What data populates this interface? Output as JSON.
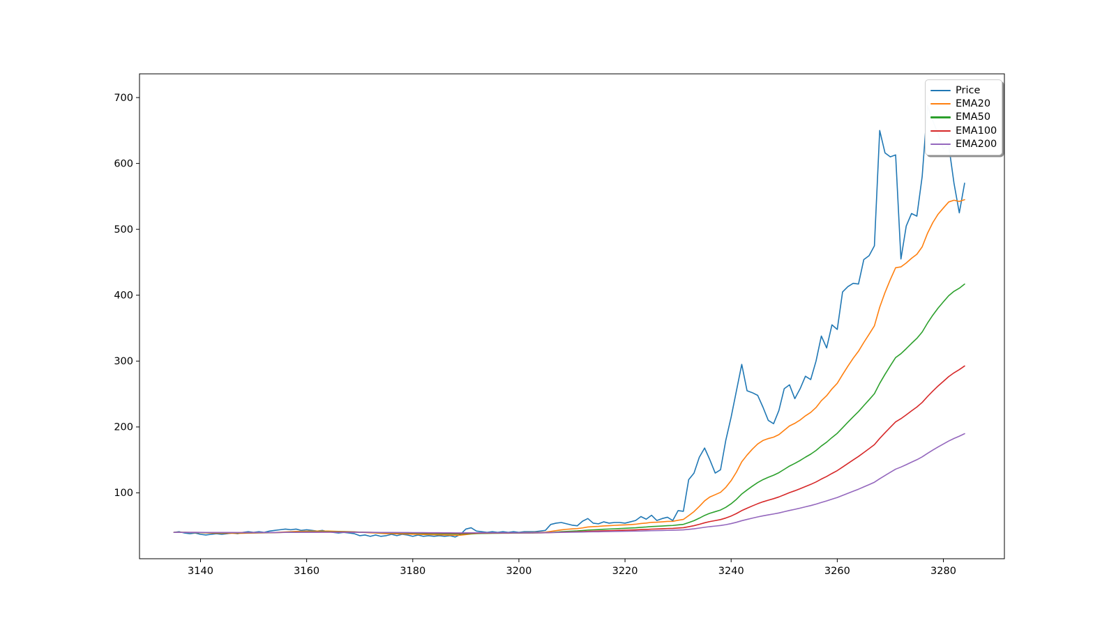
{
  "chart_data": {
    "type": "line",
    "title": "",
    "xlabel": "",
    "ylabel": "",
    "grid": false,
    "legend_position": "upper right",
    "xlim": [
      3128.5,
      3291.5
    ],
    "ylim": [
      0,
      736
    ],
    "x_ticks": [
      3140,
      3160,
      3180,
      3200,
      3220,
      3240,
      3260,
      3280
    ],
    "y_ticks": [
      100,
      200,
      300,
      400,
      500,
      600,
      700
    ],
    "x_start": 3135,
    "x_step": 1,
    "price": [
      40,
      41,
      39,
      38,
      39,
      37,
      36,
      37,
      38,
      37,
      38,
      39,
      38,
      40,
      41,
      40,
      41,
      40,
      42,
      43,
      44,
      45,
      44,
      45,
      43,
      44,
      43,
      42,
      43,
      41,
      40,
      39,
      40,
      39,
      38,
      35,
      36,
      34,
      36,
      34,
      35,
      37,
      35,
      37,
      36,
      34,
      36,
      34,
      35,
      34,
      35,
      34,
      35,
      33,
      37,
      45,
      47,
      42,
      41,
      40,
      41,
      40,
      41,
      40,
      41,
      40,
      41,
      41,
      41,
      42,
      43,
      52,
      54,
      55,
      53,
      51,
      50,
      57,
      61,
      54,
      53,
      56,
      54,
      55,
      55,
      54,
      56,
      58,
      64,
      60,
      66,
      58,
      61,
      63,
      58,
      73,
      72,
      120,
      130,
      154,
      168,
      150,
      130,
      135,
      180,
      215,
      255,
      295,
      255,
      252,
      248,
      230,
      210,
      205,
      225,
      258,
      264,
      243,
      258,
      277,
      272,
      300,
      338,
      320,
      355,
      348,
      405,
      413,
      418,
      417,
      454,
      460,
      475,
      650,
      616,
      610,
      613,
      455,
      505,
      524,
      520,
      580,
      688,
      665,
      645,
      622,
      628,
      570,
      525,
      570
    ],
    "series": [
      {
        "name": "Price",
        "color": "#1f77b4",
        "source": "price"
      },
      {
        "name": "EMA20",
        "color": "#ff7f0e",
        "ema_period": 20
      },
      {
        "name": "EMA50",
        "color": "#2ca02c",
        "ema_period": 50
      },
      {
        "name": "EMA100",
        "color": "#d62728",
        "ema_period": 100
      },
      {
        "name": "EMA200",
        "color": "#9467bd",
        "ema_period": 200
      }
    ]
  }
}
